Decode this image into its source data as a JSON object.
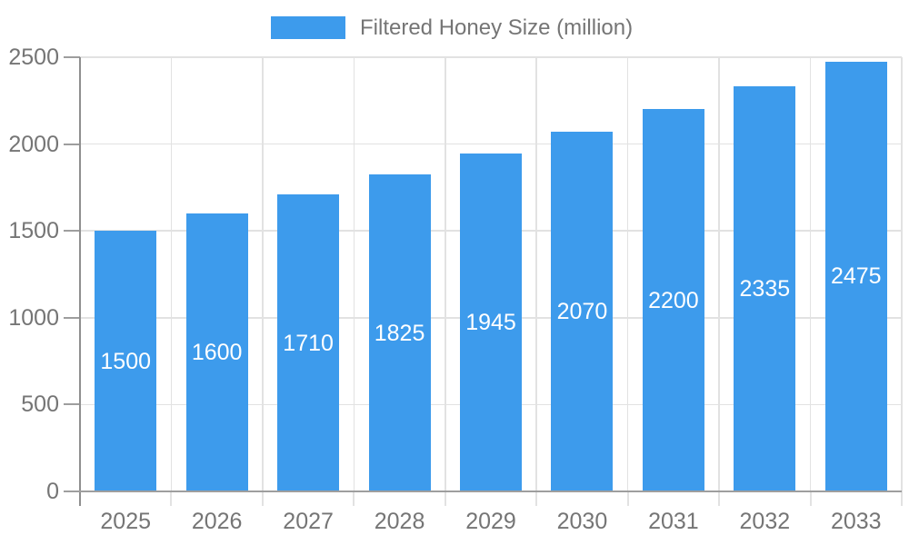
{
  "chart_data": {
    "type": "bar",
    "title": "",
    "series_name": "Filtered Honey Size (million)",
    "categories": [
      "2025",
      "2026",
      "2027",
      "2028",
      "2029",
      "2030",
      "2031",
      "2032",
      "2033"
    ],
    "values": [
      1500,
      1600,
      1710,
      1825,
      1945,
      2070,
      2200,
      2335,
      2475
    ],
    "ylim": [
      0,
      2500
    ],
    "yticks": [
      0,
      500,
      1000,
      1500,
      2000,
      2500
    ],
    "grid": true,
    "legend_position": "top",
    "bar_labels_inside": true,
    "colors": {
      "bar": "#3d9bec",
      "bar_label": "#ffffff",
      "axis_text": "#757575",
      "grid_line": "#e2e2e2",
      "axis_line": "#8f8f8f",
      "baseline": "#9e9e9e",
      "background": "#ffffff"
    }
  }
}
